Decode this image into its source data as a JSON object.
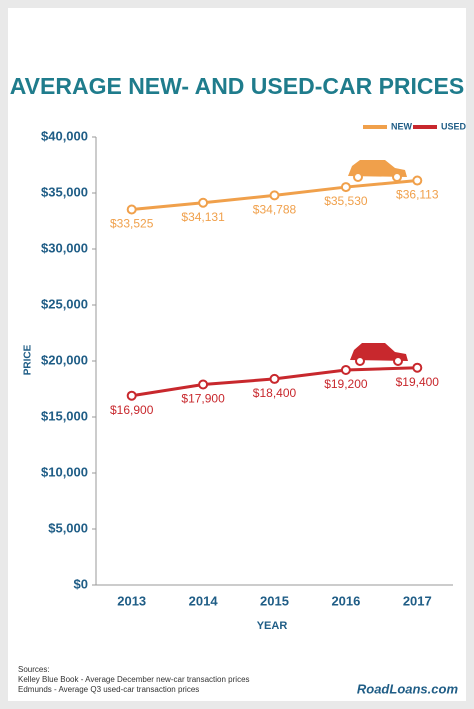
{
  "chart_data": {
    "type": "line",
    "title": "AVERAGE NEW- AND USED-CAR PRICES",
    "categories": [
      "2013",
      "2014",
      "2015",
      "2016",
      "2017"
    ],
    "series": [
      {
        "name": "NEW",
        "color": "#f0a04b",
        "values": [
          33525,
          34131,
          34788,
          35530,
          36113
        ],
        "value_labels": [
          "$33,525",
          "$34,131",
          "$34,788",
          "$35,530",
          "$36,113"
        ]
      },
      {
        "name": "USED",
        "color": "#c8282d",
        "values": [
          16900,
          17900,
          18400,
          19200,
          19400
        ],
        "value_labels": [
          "$16,900",
          "$17,900",
          "$18,400",
          "$19,200",
          "$19,400"
        ]
      }
    ],
    "ylim": [
      0,
      40000
    ],
    "yticks": [
      {
        "value": 0,
        "label": "$0"
      },
      {
        "value": 5000,
        "label": "$5,000"
      },
      {
        "value": 10000,
        "label": "$10,000"
      },
      {
        "value": 15000,
        "label": "$15,000"
      },
      {
        "value": 20000,
        "label": "$20,000"
      },
      {
        "value": 25000,
        "label": "$25,000"
      },
      {
        "value": 30000,
        "label": "$30,000"
      },
      {
        "value": 35000,
        "label": "$35,000"
      },
      {
        "value": 40000,
        "label": "$40,000"
      }
    ],
    "xlabel": "YEAR",
    "ylabel": "PRICE",
    "legend": "top-right",
    "grid": false
  },
  "sources": {
    "heading": "Sources:",
    "lines": [
      "Kelley Blue Book - Average December new-car transaction prices",
      "Edmunds - Average Q3 used-car transaction prices"
    ]
  },
  "brand": "RoadLoans.com"
}
